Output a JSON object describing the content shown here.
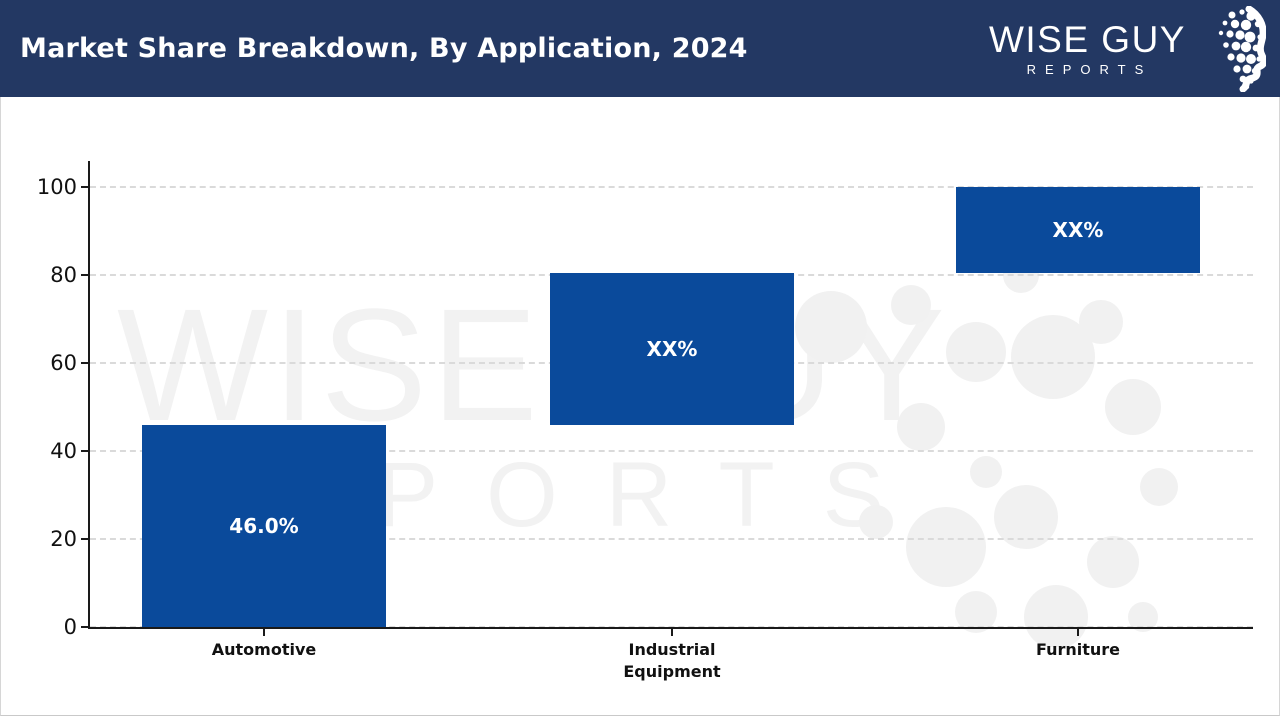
{
  "header": {
    "title": "Market Share Breakdown, By Application, 2024",
    "logo": {
      "wordmark": "WISE GUY",
      "subtext": "REPORTS"
    }
  },
  "watermark": {
    "line1": "WISE GUY",
    "line2": "REPORTS"
  },
  "colors": {
    "header_bg": "#233863",
    "bar": "#0a4a9b",
    "gridline": "#dadada",
    "axis": "#1a1a1a",
    "bar_label": "#ffffff",
    "watermark": "#f2f2f2"
  },
  "chart_data": {
    "type": "bar",
    "subtype": "waterfall",
    "title": "Market Share Breakdown, By Application, 2024",
    "categories": [
      "Automotive",
      "Industrial Equipment",
      "Furniture"
    ],
    "series": [
      {
        "name": "Market share (%)",
        "segments": [
          {
            "category": "Automotive",
            "base": 0,
            "top": 46,
            "label": "46.0%"
          },
          {
            "category": "Industrial Equipment",
            "base": 46,
            "top": 80.5,
            "label": "XX%"
          },
          {
            "category": "Furniture",
            "base": 80.5,
            "top": 100,
            "label": "XX%"
          }
        ]
      }
    ],
    "xlabel": "",
    "ylabel": "",
    "ylim": [
      0,
      100
    ],
    "yticks": [
      0,
      20,
      40,
      60,
      80,
      100
    ],
    "grid": "horizontal-dashed",
    "legend": false
  }
}
